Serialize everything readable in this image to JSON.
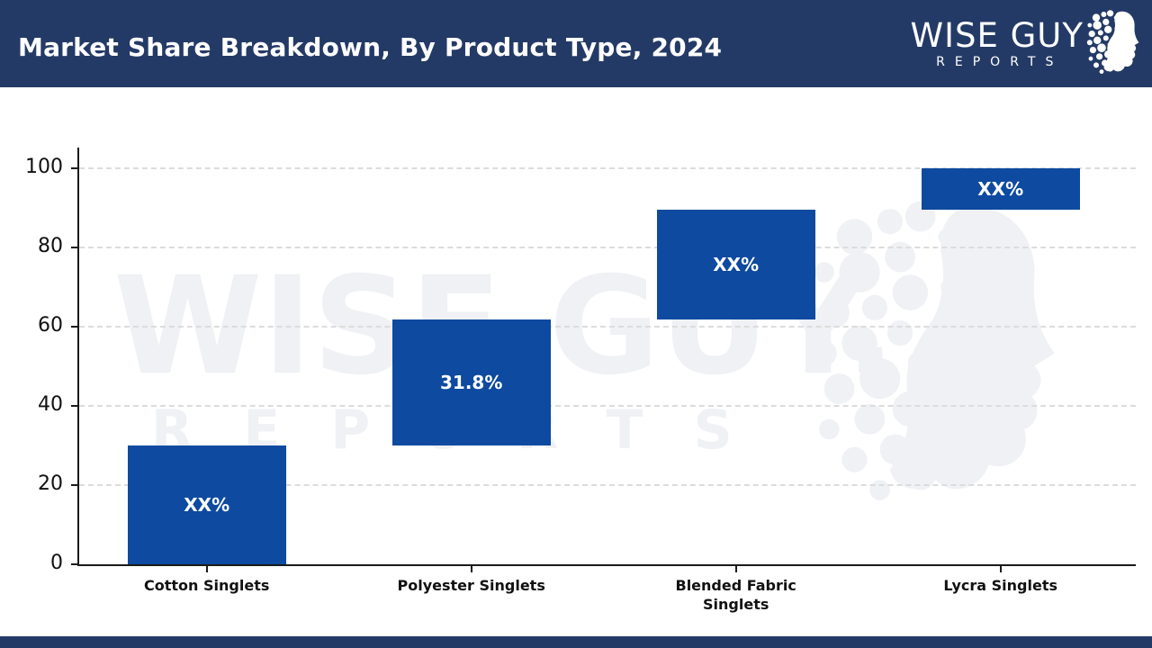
{
  "header": {
    "title": "Market Share Breakdown, By Product Type, 2024",
    "logo": {
      "line1": "WISE GUY",
      "line2": "REPORTS"
    }
  },
  "watermark": {
    "line1": "WISE GUY.",
    "line2": "REPORTS"
  },
  "chart_data": {
    "type": "bar",
    "subtype": "waterfall",
    "title": "Market Share Breakdown, By Product Type, 2024",
    "categories": [
      "Cotton Singlets",
      "Polyester Singlets",
      "Blended Fabric Singlets",
      "Lycra Singlets"
    ],
    "segments": [
      {
        "category": "Cotton Singlets",
        "start": 0,
        "end": 30,
        "label": "XX%"
      },
      {
        "category": "Polyester Singlets",
        "start": 30,
        "end": 61.8,
        "label": "31.8%"
      },
      {
        "category": "Blended Fabric Singlets",
        "start": 61.8,
        "end": 89.5,
        "label": "XX%"
      },
      {
        "category": "Lycra Singlets",
        "start": 89.5,
        "end": 100,
        "label": "XX%"
      }
    ],
    "ylim": [
      0,
      100
    ],
    "yticks": [
      0,
      20,
      40,
      60,
      80,
      100
    ],
    "xlabel": "",
    "ylabel": "",
    "grid": "horizontal-dashed",
    "legend": null,
    "colors": {
      "bar": "#0d4aa0",
      "header_bg": "#243a66",
      "grid": "#dcdcdc",
      "axis": "#1a1a1a",
      "bar_label": "#ffffff",
      "watermark": "#eff1f4"
    }
  }
}
